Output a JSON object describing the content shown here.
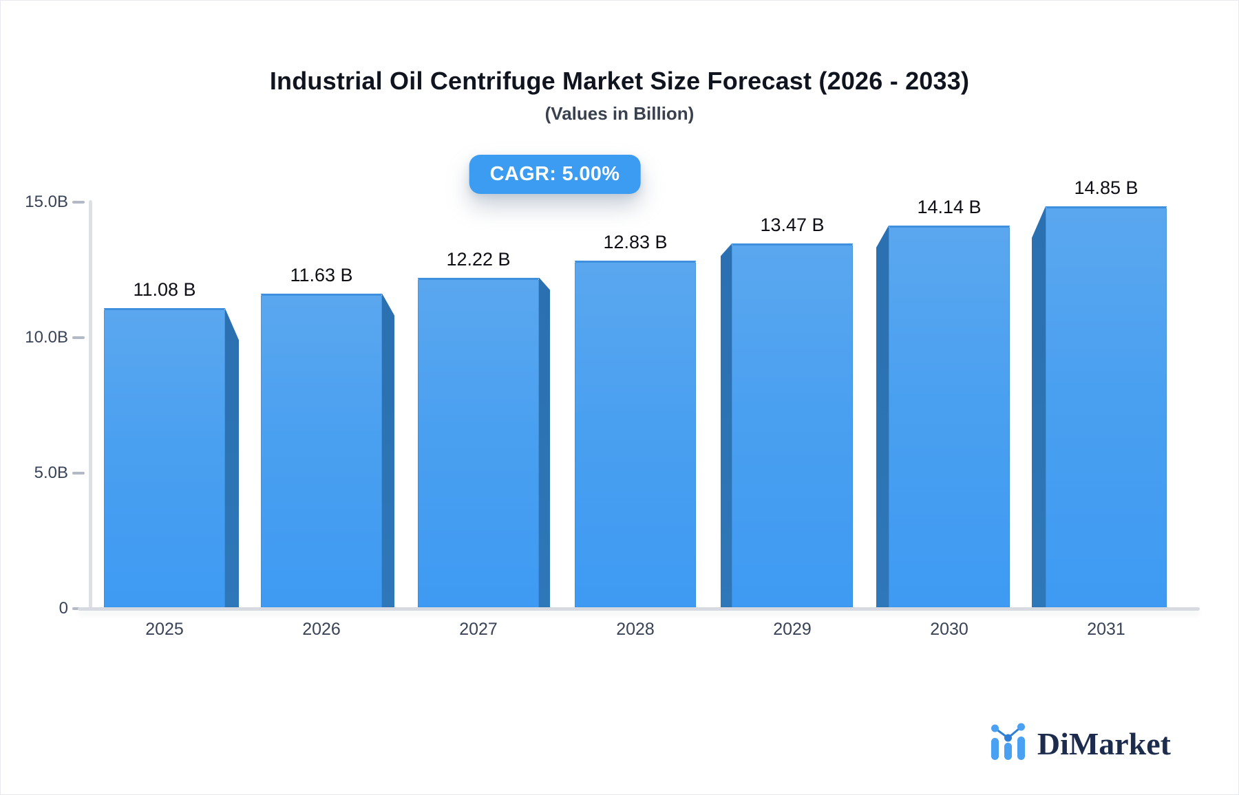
{
  "header": {
    "title": "Industrial Oil Centrifuge Market Size Forecast (2026 - 2033)",
    "subtitle": "(Values in Billion)"
  },
  "badge": {
    "label": "CAGR: 5.00%",
    "color": "#3b9cf1"
  },
  "chart_data": {
    "type": "bar",
    "title": "Industrial Oil Centrifuge Market Size Forecast (2026 - 2033)",
    "subtitle": "(Values in Billion)",
    "categories": [
      "2025",
      "2026",
      "2027",
      "2028",
      "2029",
      "2030",
      "2031"
    ],
    "values": [
      11.08,
      11.63,
      12.22,
      12.83,
      13.47,
      14.14,
      14.85
    ],
    "value_labels": [
      "11.08 B",
      "11.63 B",
      "12.22 B",
      "12.83 B",
      "13.47 B",
      "14.14 B",
      "14.85 B"
    ],
    "xlabel": "",
    "ylabel": "",
    "ylim": [
      0,
      15
    ],
    "yticks": [
      {
        "value": 15,
        "label": "15.0B"
      },
      {
        "value": 10,
        "label": "10.0B"
      },
      {
        "value": 5,
        "label": "5.0B"
      },
      {
        "value": 0,
        "label": "0"
      }
    ],
    "grid": "off",
    "legend": "none",
    "annotation": "CAGR: 5.00%",
    "bar_face_color_top": "#5aa7ef",
    "bar_face_color_bottom": "#3e9af2",
    "bar_side_color": "#2d74b5",
    "axis_color": "#dde1e7",
    "style": "pseudo-3d, side faces angled toward center vanishing point"
  },
  "footer": {
    "brand": "DiMarket",
    "logo_icon": "mini-bar-chart-with-dots-icon",
    "brand_color": "#1d2b4d",
    "icon_color": "#4aa0f1"
  }
}
